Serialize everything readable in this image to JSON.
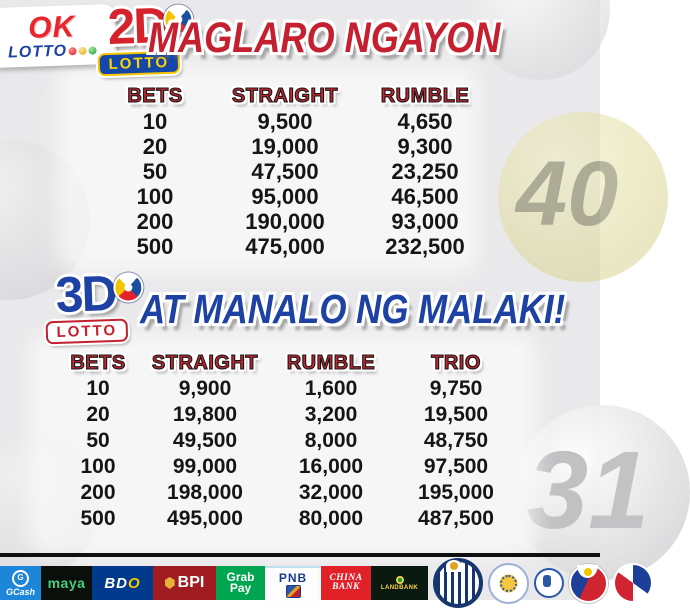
{
  "header": {
    "ok_logo": {
      "ok": "OK",
      "lotto": "LOTTO"
    },
    "logo_2d": {
      "name": "2D",
      "lotto": "LOTTO"
    },
    "headline": "MAGLARO NGAYON"
  },
  "table_2d": {
    "columns": [
      "BETS",
      "STRAIGHT",
      "RUMBLE"
    ],
    "rows": [
      [
        "10",
        "9,500",
        "4,650"
      ],
      [
        "20",
        "19,000",
        "9,300"
      ],
      [
        "50",
        "47,500",
        "23,250"
      ],
      [
        "100",
        "95,000",
        "46,500"
      ],
      [
        "200",
        "190,000",
        "93,000"
      ],
      [
        "500",
        "475,000",
        "232,500"
      ]
    ]
  },
  "section_3d": {
    "logo_3d": {
      "name": "3D",
      "lotto": "LOTTO"
    },
    "headline": "AT MANALO NG MALAKI!"
  },
  "table_3d": {
    "columns": [
      "BETS",
      "STRAIGHT",
      "RUMBLE",
      "TRIO"
    ],
    "rows": [
      [
        "10",
        "9,900",
        "1,600",
        "9,750"
      ],
      [
        "20",
        "19,800",
        "3,200",
        "19,500"
      ],
      [
        "50",
        "49,500",
        "8,000",
        "48,750"
      ],
      [
        "100",
        "99,000",
        "16,000",
        "97,500"
      ],
      [
        "200",
        "198,000",
        "32,000",
        "195,000"
      ],
      [
        "500",
        "495,000",
        "80,000",
        "487,500"
      ]
    ]
  },
  "footer": {
    "payments": [
      {
        "id": "gcash",
        "icon": "G",
        "label": "GCash"
      },
      {
        "id": "maya",
        "label": "maya"
      },
      {
        "id": "bdo",
        "label_a": "BD",
        "label_b": "O"
      },
      {
        "id": "bpi",
        "label": "BPI"
      },
      {
        "id": "grabpay",
        "line1": "Grab",
        "line2": "Pay"
      },
      {
        "id": "pnb",
        "label": "PNB"
      },
      {
        "id": "chinabank",
        "line1": "CHINA",
        "line2": "BANK"
      },
      {
        "id": "landbank",
        "label": "LANDBANK"
      }
    ]
  },
  "watermarks": {
    "numbers": [
      "40",
      "31"
    ]
  },
  "colors": {
    "red": "#c4202f",
    "blue": "#1d42a4",
    "header_red": "#c22731",
    "table_text": "#151515",
    "gold": "#f5c400",
    "gcash_blue": "#1d86d8",
    "maya_green": "#45d07e",
    "bdo_blue": "#003a8c",
    "bpi_red": "#a01c22",
    "grab_green": "#00a64f",
    "pnb_blue": "#1b3c8c",
    "chinabank_red": "#e02128",
    "landbank_dark": "#0a1a10"
  }
}
